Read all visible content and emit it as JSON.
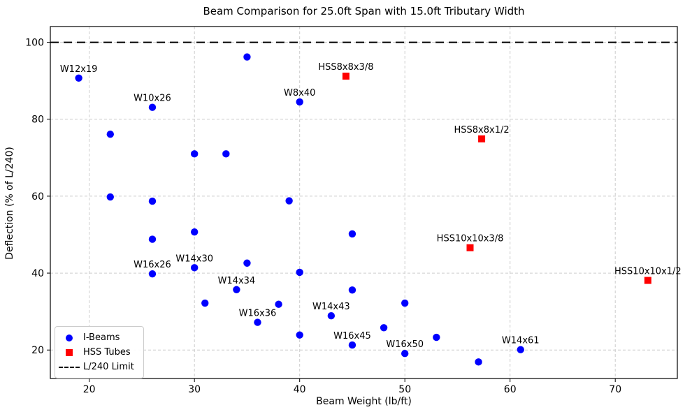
{
  "chart_data": {
    "type": "scatter",
    "title": "Beam Comparison for 25.0ft Span with 15.0ft Tributary Width",
    "xlabel": "Beam Weight (lb/ft)",
    "ylabel": "Deflection (% of L/240)",
    "xlim": [
      16.3,
      75.9
    ],
    "ylim": [
      12.6,
      104.1
    ],
    "x_ticks": [
      20,
      30,
      40,
      50,
      60,
      70
    ],
    "y_ticks": [
      20,
      40,
      60,
      80,
      100
    ],
    "grid": true,
    "grid_color": "#cccccc",
    "axis_color": "#000000",
    "background": "#ffffff",
    "series": [
      {
        "name": "I-Beams",
        "marker": "circle",
        "color": "#0000ff",
        "points": [
          {
            "x": 19,
            "y": 90.7,
            "label": "W12x19"
          },
          {
            "x": 22,
            "y": 76.1
          },
          {
            "x": 26,
            "y": 83.1,
            "label": "W10x26"
          },
          {
            "x": 22,
            "y": 59.8
          },
          {
            "x": 26,
            "y": 58.7
          },
          {
            "x": 30,
            "y": 71.0
          },
          {
            "x": 33,
            "y": 71.0
          },
          {
            "x": 35,
            "y": 96.2
          },
          {
            "x": 39,
            "y": 58.8
          },
          {
            "x": 40,
            "y": 84.5,
            "label": "W8x40"
          },
          {
            "x": 26,
            "y": 48.8
          },
          {
            "x": 30,
            "y": 50.7
          },
          {
            "x": 26,
            "y": 39.8,
            "label": "W16x26"
          },
          {
            "x": 30,
            "y": 41.4,
            "label": "W14x30"
          },
          {
            "x": 35,
            "y": 42.6
          },
          {
            "x": 34,
            "y": 35.7,
            "label": "W14x34"
          },
          {
            "x": 31,
            "y": 32.2
          },
          {
            "x": 38,
            "y": 31.9
          },
          {
            "x": 36,
            "y": 27.2,
            "label": "W16x36"
          },
          {
            "x": 40,
            "y": 40.2
          },
          {
            "x": 40,
            "y": 23.9
          },
          {
            "x": 43,
            "y": 28.9,
            "label": "W14x43"
          },
          {
            "x": 45,
            "y": 50.2
          },
          {
            "x": 45,
            "y": 35.6
          },
          {
            "x": 50,
            "y": 32.2
          },
          {
            "x": 48,
            "y": 25.8
          },
          {
            "x": 45,
            "y": 21.3,
            "label": "W16x45"
          },
          {
            "x": 53,
            "y": 23.3
          },
          {
            "x": 50,
            "y": 19.1,
            "label": "W16x50"
          },
          {
            "x": 57,
            "y": 16.9
          },
          {
            "x": 61,
            "y": 20.1,
            "label": "W14x61"
          }
        ]
      },
      {
        "name": "HSS Tubes",
        "marker": "square",
        "color": "#ff0000",
        "points": [
          {
            "x": 44.4,
            "y": 91.2,
            "label": "HSS8x8x3/8"
          },
          {
            "x": 57.3,
            "y": 74.9,
            "label": "HSS8x8x1/2"
          },
          {
            "x": 56.2,
            "y": 46.6,
            "label": "HSS10x10x3/8"
          },
          {
            "x": 73.1,
            "y": 38.1,
            "label": "HSS10x10x1/2"
          }
        ]
      }
    ],
    "limit_line": {
      "label": "L/240 Limit",
      "y": 100,
      "color": "#000000",
      "style": "dashed"
    },
    "legend": {
      "position": "lower-left",
      "items": [
        {
          "label": "I-Beams",
          "marker": "circle",
          "color": "#0000ff"
        },
        {
          "label": "HSS Tubes",
          "marker": "square",
          "color": "#ff0000"
        },
        {
          "label": "L/240 Limit",
          "marker": "dashed-line",
          "color": "#000000"
        }
      ]
    }
  }
}
